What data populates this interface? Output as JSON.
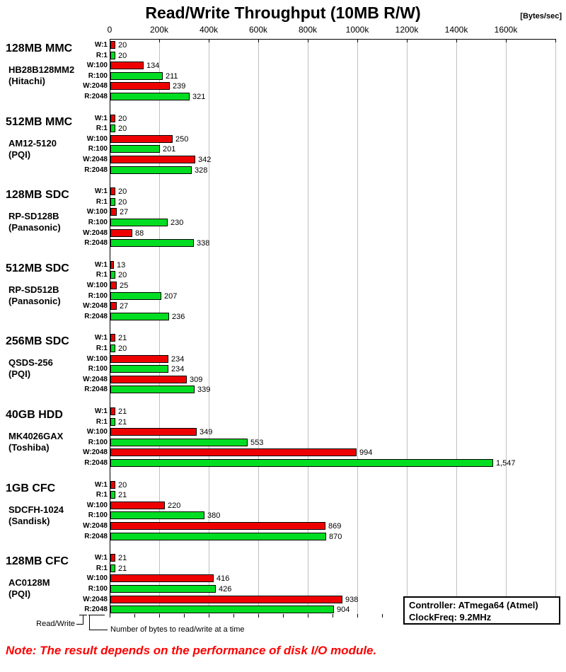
{
  "title": "Read/Write Throughput (10MB R/W)",
  "axis_unit": "[Bytes/sec]",
  "annotations": {
    "read_write": "Read/Write",
    "bytes_note": "Number of bytes to read/write at a time"
  },
  "info_box": {
    "line1": "Controller: ATmega64 (Atmel)",
    "line2": "ClockFreq: 9.2MHz"
  },
  "footnote": "Note: The result depends on the performance of disk I/O module.",
  "colors": {
    "write_bar": "#ee0000",
    "read_bar": "#00dd22",
    "bar_border": "#000000",
    "grid": "#c0c0c0",
    "axis": "#000000",
    "note_text": "#ff0000"
  },
  "chart_data": {
    "type": "bar",
    "orientation": "horizontal",
    "title": "Read/Write Throughput (10MB R/W)",
    "x_axis": {
      "unit": "Bytes/sec",
      "min": 0,
      "max": 1800000,
      "tick_interval": 200000,
      "tick_labels": [
        "0",
        "200k",
        "400k",
        "600k",
        "800k",
        "1000k",
        "1200k",
        "1400k",
        "1600k"
      ],
      "grid": true
    },
    "value_label_multiplier": 1000,
    "bar_labels": [
      "W:1",
      "R:1",
      "W:100",
      "R:100",
      "W:2048",
      "R:2048"
    ],
    "series_legend": {
      "W": "Write (red)",
      "R": "Read (green)",
      "number_meaning": "Number of bytes to read/write at a time"
    },
    "groups": [
      {
        "name": "128MB MMC",
        "model": "HB28B128MM2",
        "vendor": "(Hitachi)",
        "values": [
          20,
          20,
          134,
          211,
          239,
          321
        ],
        "value_labels": [
          "20",
          "20",
          "134",
          "211",
          "239",
          "321"
        ]
      },
      {
        "name": "512MB MMC",
        "model": "AM12-5120",
        "vendor": "(PQI)",
        "values": [
          20,
          20,
          250,
          201,
          342,
          328
        ],
        "value_labels": [
          "20",
          "20",
          "250",
          "201",
          "342",
          "328"
        ]
      },
      {
        "name": "128MB SDC",
        "model": "RP-SD128B",
        "vendor": "(Panasonic)",
        "values": [
          20,
          20,
          27,
          230,
          88,
          338
        ],
        "value_labels": [
          "20",
          "20",
          "27",
          "230",
          "88",
          "338"
        ]
      },
      {
        "name": "512MB SDC",
        "model": "RP-SD512B",
        "vendor": "(Panasonic)",
        "values": [
          13,
          20,
          25,
          207,
          27,
          236
        ],
        "value_labels": [
          "13",
          "20",
          "25",
          "207",
          "27",
          "236"
        ]
      },
      {
        "name": "256MB SDC",
        "model": "QSDS-256",
        "vendor": "(PQI)",
        "values": [
          21,
          20,
          234,
          234,
          309,
          339
        ],
        "value_labels": [
          "21",
          "20",
          "234",
          "234",
          "309",
          "339"
        ]
      },
      {
        "name": "40GB HDD",
        "model": "MK4026GAX",
        "vendor": "(Toshiba)",
        "values": [
          21,
          21,
          349,
          553,
          994,
          1547
        ],
        "value_labels": [
          "21",
          "21",
          "349",
          "553",
          "994",
          "1,547"
        ]
      },
      {
        "name": "1GB CFC",
        "model": "SDCFH-1024",
        "vendor": "(Sandisk)",
        "values": [
          20,
          21,
          220,
          380,
          869,
          870
        ],
        "value_labels": [
          "20",
          "21",
          "220",
          "380",
          "869",
          "870"
        ]
      },
      {
        "name": "128MB CFC",
        "model": "AC0128M",
        "vendor": "(PQI)",
        "values": [
          21,
          21,
          416,
          426,
          938,
          904
        ],
        "value_labels": [
          "21",
          "21",
          "416",
          "426",
          "938",
          "904"
        ]
      }
    ]
  }
}
